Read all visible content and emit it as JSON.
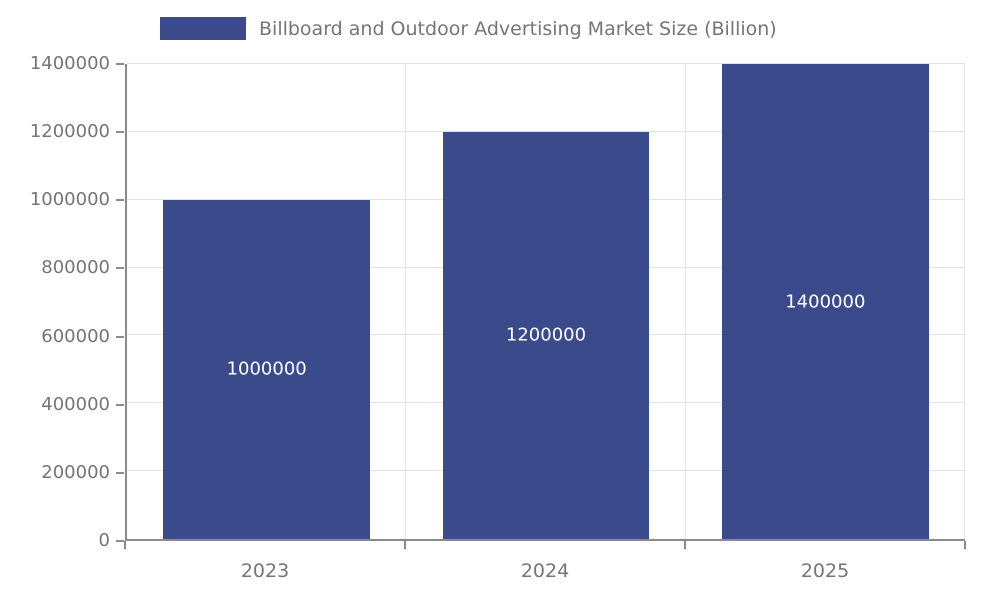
{
  "chart_data": {
    "type": "bar",
    "title": "Billboard and Outdoor Advertising Market Size (Billion)",
    "categories": [
      "2023",
      "2024",
      "2025"
    ],
    "series": [
      {
        "name": "Billboard and Outdoor Advertising Market Size (Billion)",
        "values": [
          1000000,
          1200000,
          1400000
        ]
      }
    ],
    "values": [
      1000000,
      1200000,
      1400000
    ],
    "value_labels": [
      "1000000",
      "1200000",
      "1400000"
    ],
    "xlabel": "",
    "ylabel": "",
    "ylim": [
      0,
      1400000
    ],
    "ytick_step": 200000,
    "yticks": [
      "0",
      "200000",
      "400000",
      "600000",
      "800000",
      "1000000",
      "1200000",
      "1400000"
    ],
    "grid": true,
    "legend_position": "top-left",
    "colors": {
      "bar": "#3A4A8B",
      "grid_line": "#e3e3e3",
      "axis_line": "#8a8a8a",
      "tick_text": "#757575",
      "legend_text": "#757575",
      "bar_label_text": "#ffffff",
      "background": "#ffffff"
    }
  }
}
